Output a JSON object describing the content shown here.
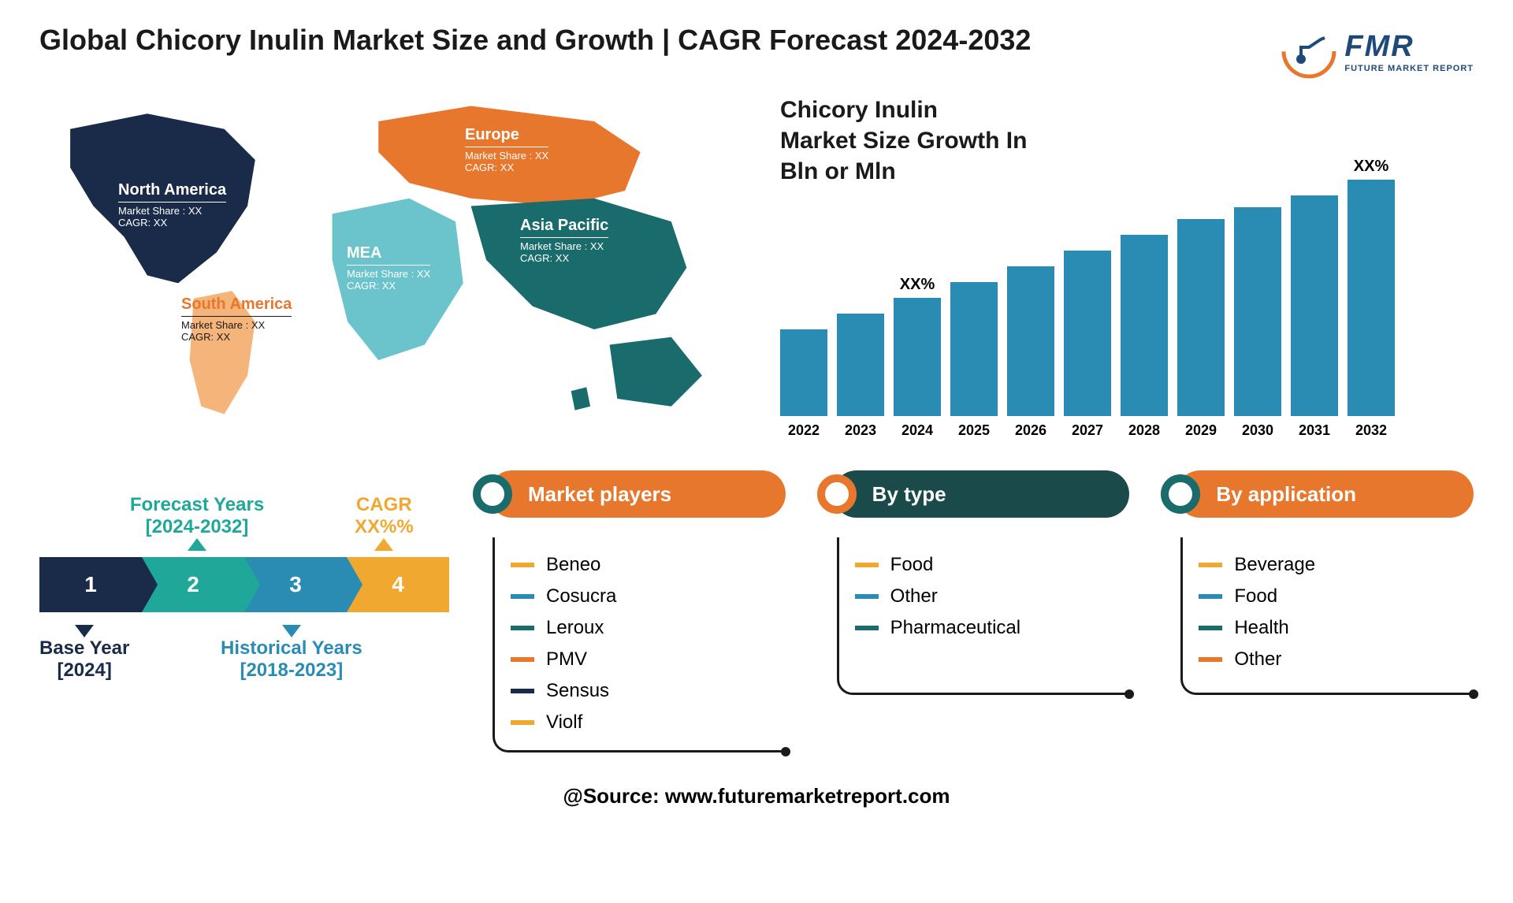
{
  "title": "Global Chicory Inulin Market Size and Growth | CAGR Forecast 2024-2032",
  "logo": {
    "text": "FMR",
    "subtitle": "FUTURE MARKET REPORT",
    "icon_color": "#e8772e",
    "text_color": "#1e4a7a"
  },
  "map": {
    "regions": [
      {
        "name": "North America",
        "share": "Market Share : XX",
        "cagr": "CAGR: XX",
        "color": "#1a2b4a"
      },
      {
        "name": "South America",
        "share": "Market Share : XX",
        "cagr": "CAGR: XX",
        "color": "#f5b57a"
      },
      {
        "name": "Europe",
        "share": "Market Share : XX",
        "cagr": "CAGR: XX",
        "color": "#e8772e"
      },
      {
        "name": "MEA",
        "share": "Market Share : XX",
        "cagr": "CAGR: XX",
        "color": "#6bc4cc"
      },
      {
        "name": "Asia Pacific",
        "share": "Market Share : XX",
        "cagr": "CAGR: XX",
        "color": "#1a6b6b"
      }
    ]
  },
  "chart": {
    "title_l1": "Chicory Inulin",
    "title_l2": "Market Size Growth In",
    "title_l3": "Bln or Mln",
    "bar_color": "#2b8cb3",
    "years": [
      "2022",
      "2023",
      "2024",
      "2025",
      "2026",
      "2027",
      "2028",
      "2029",
      "2030",
      "2031",
      "2032"
    ],
    "heights": [
      110,
      130,
      150,
      170,
      190,
      210,
      230,
      250,
      265,
      280,
      300
    ],
    "callouts": {
      "2": "XX%",
      "10": "XX%"
    },
    "label_fontsize": 18,
    "title_fontsize": 30
  },
  "timeline": {
    "segments": [
      {
        "num": "1",
        "color": "#1a2b4a"
      },
      {
        "num": "2",
        "color": "#1fa89a"
      },
      {
        "num": "3",
        "color": "#2b8cb3"
      },
      {
        "num": "4",
        "color": "#f0a830"
      }
    ],
    "labels": {
      "base": {
        "title": "Base Year",
        "sub": "[2024]",
        "color": "#1a2b4a"
      },
      "forecast": {
        "title": "Forecast Years",
        "sub": "[2024-2032]",
        "color": "#1fa89a"
      },
      "historical": {
        "title": "Historical Years",
        "sub": "[2018-2023]",
        "color": "#2b8cb3"
      },
      "cagr": {
        "title": "CAGR",
        "sub": "XX%%",
        "color": "#f0a830"
      }
    }
  },
  "categories": [
    {
      "title": "Market players",
      "pill_color": "#e8772e",
      "circle_border": "#1a6b6b",
      "items": [
        "Beneo",
        "Cosucra",
        "Leroux",
        "PMV",
        "Sensus",
        "Violf"
      ],
      "dash_colors": [
        "#f0a830",
        "#2b8cb3",
        "#1a6b6b",
        "#e8772e",
        "#1a2b4a",
        "#f0a830"
      ]
    },
    {
      "title": "By type",
      "pill_color": "#1a4a4a",
      "circle_border": "#e8772e",
      "items": [
        "Food",
        "Other",
        "Pharmaceutical"
      ],
      "dash_colors": [
        "#f0a830",
        "#2b8cb3",
        "#1a6b6b"
      ]
    },
    {
      "title": "By application",
      "pill_color": "#e8772e",
      "circle_border": "#1a6b6b",
      "items": [
        "Beverage",
        "Food",
        "Health",
        "Other"
      ],
      "dash_colors": [
        "#f0a830",
        "#2b8cb3",
        "#1a6b6b",
        "#e8772e"
      ]
    }
  ],
  "source": "@Source: www.futuremarketreport.com"
}
